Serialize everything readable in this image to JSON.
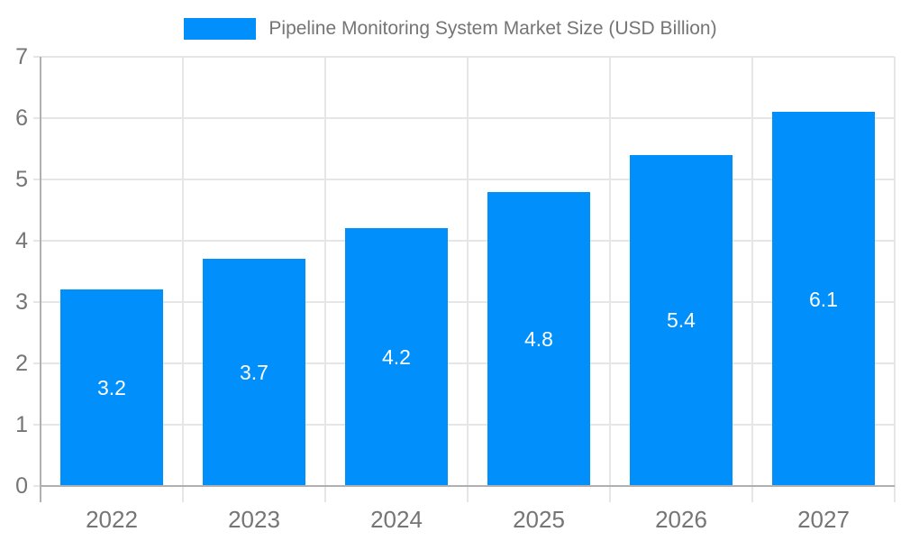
{
  "chart_data": {
    "type": "bar",
    "title": "Pipeline Monitoring System Market Size (USD Billion)",
    "categories": [
      "2022",
      "2023",
      "2024",
      "2025",
      "2026",
      "2027"
    ],
    "values": [
      3.2,
      3.7,
      4.2,
      4.8,
      5.4,
      6.1
    ],
    "value_labels": [
      "3.2",
      "3.7",
      "4.2",
      "4.8",
      "5.4",
      "6.1"
    ],
    "xlabel": "",
    "ylabel": "",
    "ylim": [
      0,
      7
    ],
    "yticks": [
      0,
      1,
      2,
      3,
      4,
      5,
      6,
      7
    ],
    "ytick_labels": [
      "0",
      "1",
      "2",
      "3",
      "4",
      "5",
      "6",
      "7"
    ],
    "grid": true,
    "legend_position": "top",
    "colors": {
      "bar": "#008FFB",
      "axis_text": "#757575",
      "grid_line": "#e6e6e6",
      "axis_line": "#b0b0b0",
      "value_label": "#ffffff",
      "background": "#ffffff"
    }
  }
}
